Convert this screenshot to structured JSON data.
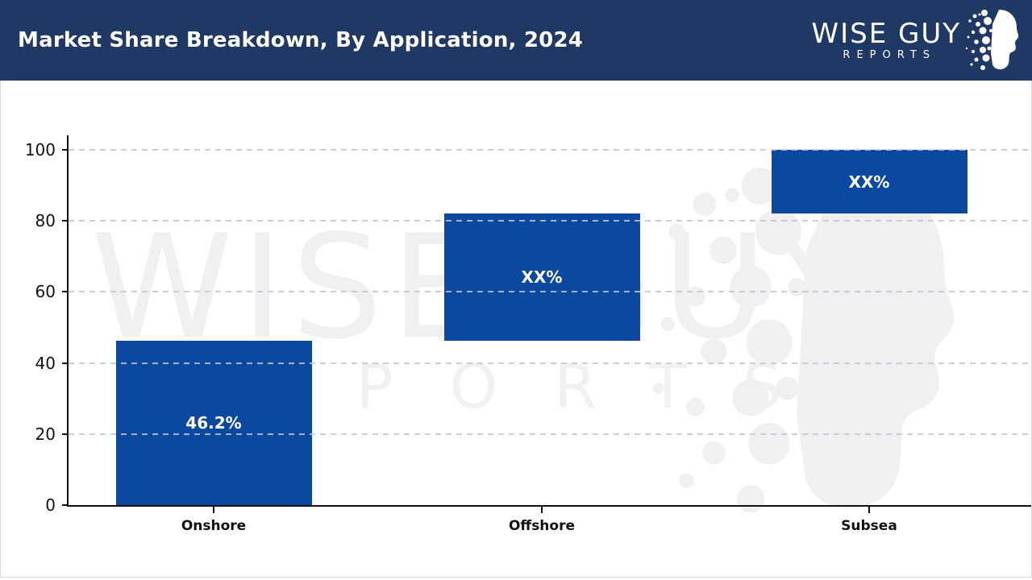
{
  "header": {
    "title": "Market Share Breakdown, By Application, 2024",
    "logo": {
      "line1": "WISE GUY",
      "line2": "REPORTS"
    }
  },
  "watermark": {
    "line1": "WISE GUY",
    "line2": "REPORTS"
  },
  "colors": {
    "header_bg": "#1F3864",
    "bar_blue": "#0B49A0",
    "grid_gray": "#D9D9D9",
    "axis_black": "#111111",
    "watermark_gray": "#F0F0F0"
  },
  "chart_data": {
    "type": "bar",
    "subtype": "waterfall",
    "title": "Market Share Breakdown, By Application, 2024",
    "categories": [
      "Onshore",
      "Offshore",
      "Subsea"
    ],
    "segments": [
      {
        "category": "Onshore",
        "start": 0,
        "end": 46.2,
        "label": "46.2%"
      },
      {
        "category": "Offshore",
        "start": 46.2,
        "end": 82,
        "label": "XX%"
      },
      {
        "category": "Subsea",
        "start": 82,
        "end": 100,
        "label": "XX%"
      }
    ],
    "ylim": [
      0,
      100
    ],
    "yticks": [
      0,
      20,
      40,
      60,
      80,
      100
    ],
    "xlabel": "",
    "ylabel": "",
    "grid": "horizontal dashed",
    "legend": "none",
    "bar_color": "#0B49A0",
    "value_label_color": "#FFFFFF"
  }
}
